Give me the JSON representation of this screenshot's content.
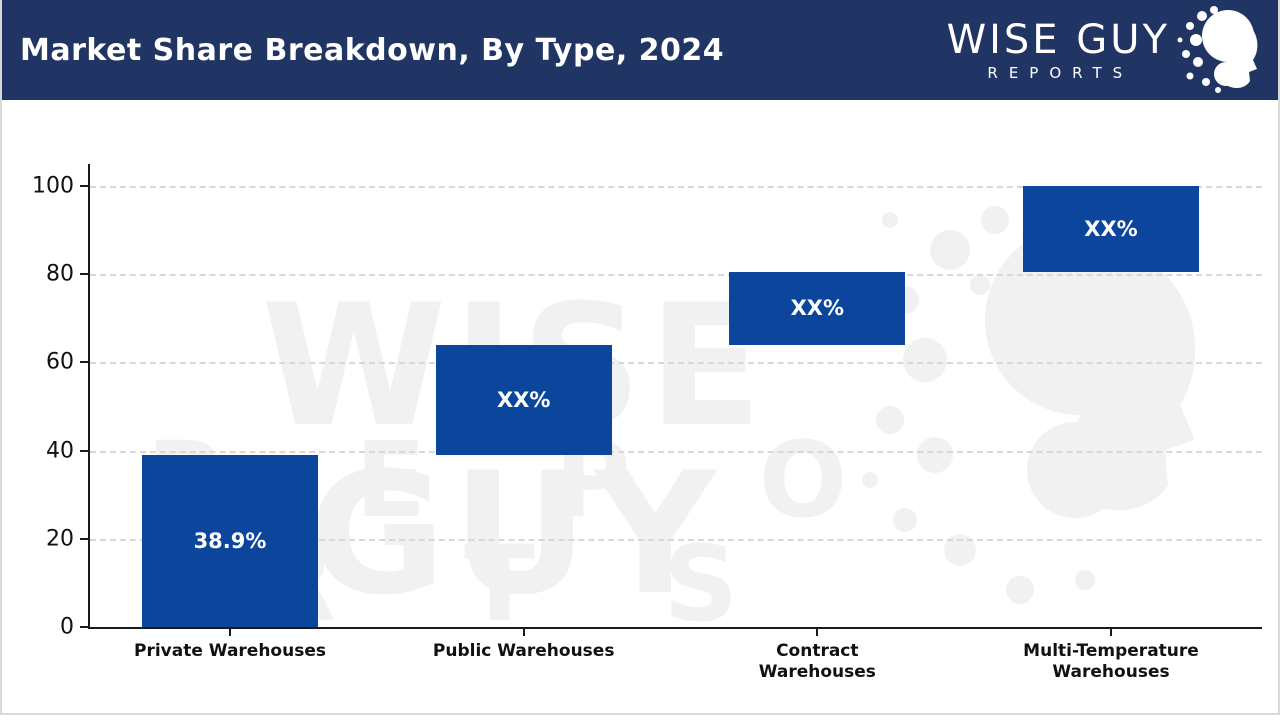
{
  "header": {
    "title": "Market Share Breakdown, By Type, 2024",
    "logo": {
      "line1": "WISE GUY",
      "line2": "REPORTS"
    }
  },
  "watermark": {
    "line1": "WISE GUY",
    "line2": "REPORTS"
  },
  "colors": {
    "header_bg": "#213564",
    "bar": "#0C459C",
    "grid": "#d8d8d8",
    "watermark": "#f1f1f2",
    "axis": "#1a1a1a",
    "bar_label": "#ffffff"
  },
  "chart_data": {
    "type": "bar",
    "subtype": "waterfall",
    "title": "Market Share Breakdown, By Type, 2024",
    "xlabel": "",
    "ylabel": "",
    "ylim": [
      0,
      105
    ],
    "yticks": [
      0,
      20,
      40,
      60,
      80,
      100
    ],
    "grid": "horizontal-dashed",
    "legend": "none",
    "categories": [
      "Private Warehouses",
      "Public Warehouses",
      "Contract\nWarehouses",
      "Multi-Temperature\nWarehouses"
    ],
    "segments": [
      {
        "category": "Private Warehouses",
        "start": 0,
        "end": 38.9,
        "value": 38.9,
        "label": "38.9%"
      },
      {
        "category": "Public Warehouses",
        "start": 38.9,
        "end": 64.0,
        "value": 25.1,
        "label": "XX%"
      },
      {
        "category": "Contract Warehouses",
        "start": 64.0,
        "end": 80.5,
        "value": 16.5,
        "label": "XX%"
      },
      {
        "category": "Multi-Temperature Warehouses",
        "start": 80.5,
        "end": 100.0,
        "value": 19.5,
        "label": "XX%"
      }
    ]
  }
}
